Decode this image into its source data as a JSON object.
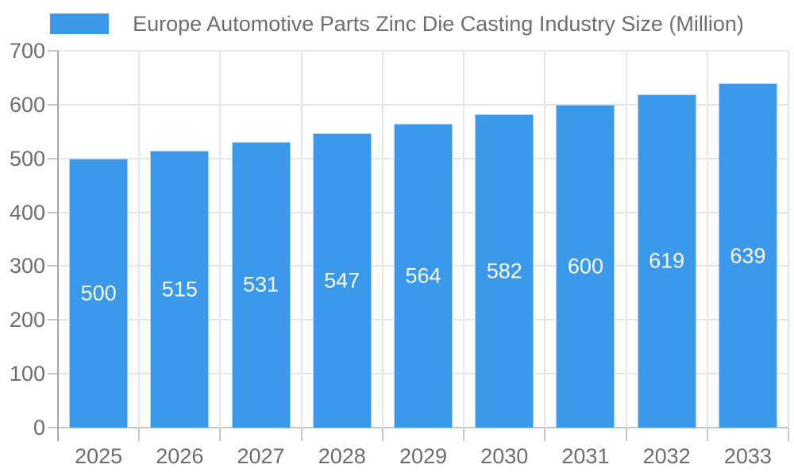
{
  "chart_data": {
    "type": "bar",
    "title": "Europe Automotive Parts Zinc Die Casting Industry Size (Million)",
    "categories": [
      "2025",
      "2026",
      "2027",
      "2028",
      "2029",
      "2030",
      "2031",
      "2032",
      "2033"
    ],
    "values": [
      500,
      515,
      531,
      547,
      564,
      582,
      600,
      619,
      639
    ],
    "y_ticks": [
      0,
      100,
      200,
      300,
      400,
      500,
      600,
      700
    ],
    "ylim": [
      0,
      700
    ],
    "xlabel": "",
    "ylabel": "",
    "grid": "on",
    "legend_position": "top",
    "colors": {
      "bar": "#3B99EC",
      "bar_border": "#A6D2F4",
      "value_label": "#FFFFFF",
      "axis_text": "#6E6E6E",
      "gridline": "#E6E6E6",
      "baseline": "#C6C6C6",
      "tick_mark": "#C6C6C6",
      "axis_line": "#A8A8A8",
      "background": "#FFFFFF"
    }
  }
}
